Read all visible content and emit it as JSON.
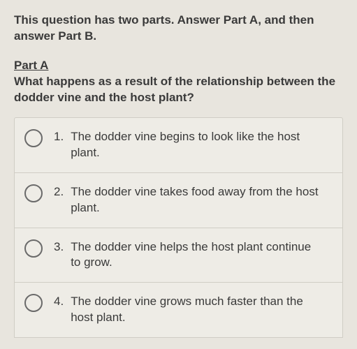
{
  "instructions": "This question has two parts. Answer Part A, and then answer Part B.",
  "part_label": "Part A",
  "question": "What happens as a result of the relationship between the dodder vine and the host plant?",
  "options": [
    {
      "num": "1.",
      "text": "The dodder vine begins to look like the host plant."
    },
    {
      "num": "2.",
      "text": "The dodder vine takes food away from the host plant."
    },
    {
      "num": "3.",
      "text": "The dodder vine helps the host plant continue to grow."
    },
    {
      "num": "4.",
      "text": "The dodder vine grows much faster than the host plant."
    }
  ],
  "colors": {
    "page_bg": "#e8e5de",
    "options_bg": "#eeece6",
    "border": "#d0cdc5",
    "text": "#3a3a3a",
    "radio_border": "#6a6a6a"
  },
  "typography": {
    "font_family": "Arial, Helvetica, sans-serif",
    "base_fontsize": 17,
    "line_height": 1.35,
    "weight_heading": "bold"
  }
}
